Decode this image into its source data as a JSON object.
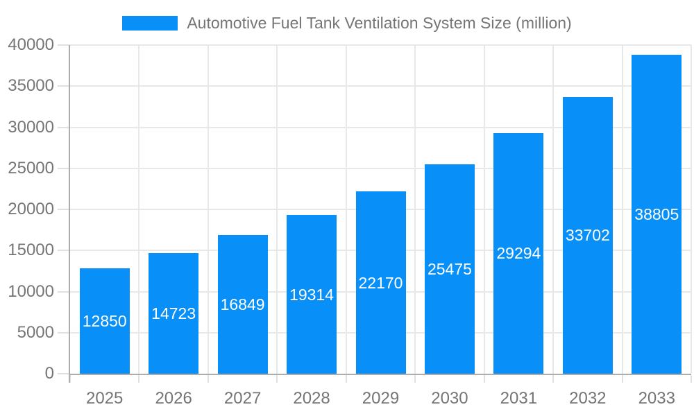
{
  "legend": {
    "label": "Automotive Fuel Tank Ventilation System Size (million)"
  },
  "chart_data": {
    "type": "bar",
    "title": "Automotive Fuel Tank Ventilation System Size (million)",
    "categories": [
      "2025",
      "2026",
      "2027",
      "2028",
      "2029",
      "2030",
      "2031",
      "2032",
      "2033"
    ],
    "values": [
      12850,
      14723,
      16849,
      19314,
      22170,
      25475,
      29294,
      33702,
      38805
    ],
    "xlabel": "",
    "ylabel": "",
    "ylim": [
      0,
      40000
    ],
    "yticks": [
      0,
      5000,
      10000,
      15000,
      20000,
      25000,
      30000,
      35000,
      40000
    ],
    "grid": true,
    "legend_position": "top",
    "value_labels": "inside-center",
    "colors": {
      "bar": "#0890f8",
      "value_text": "#ffffff",
      "axis_text": "#757575",
      "grid_line": "#e8e8e8",
      "tick_line": "#e0e0e0",
      "axis_line": "#adadad",
      "background": "#ffffff"
    }
  }
}
